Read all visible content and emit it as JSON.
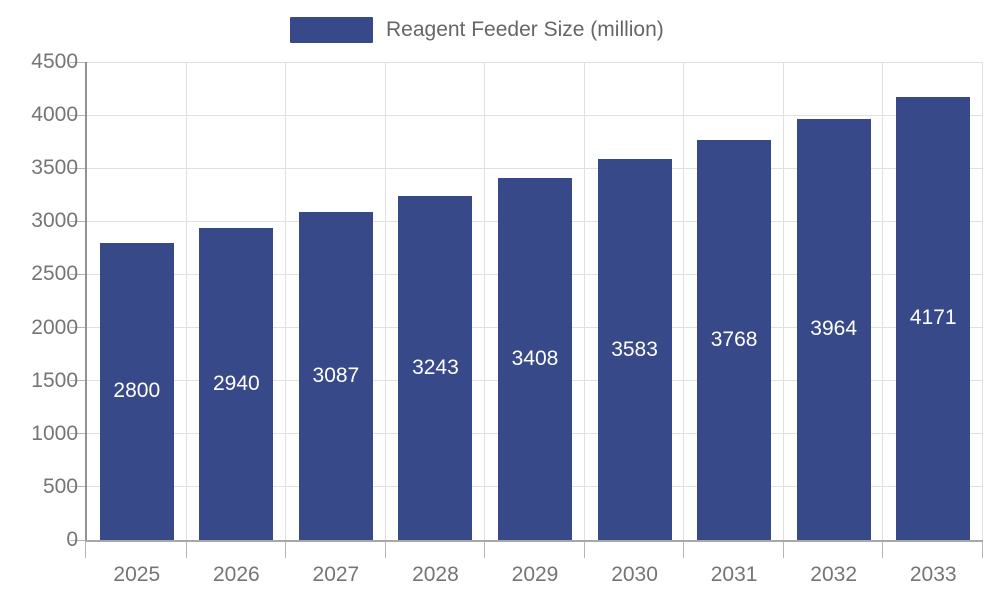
{
  "legend": {
    "label": "Reagent Feeder Size (million)"
  },
  "chart_data": {
    "type": "bar",
    "title": "",
    "xlabel": "",
    "ylabel": "",
    "categories": [
      "2025",
      "2026",
      "2027",
      "2028",
      "2029",
      "2030",
      "2031",
      "2032",
      "2033"
    ],
    "series": [
      {
        "name": "Reagent Feeder Size (million)",
        "values": [
          2800,
          2940,
          3087,
          3243,
          3408,
          3583,
          3768,
          3964,
          4171
        ]
      }
    ],
    "data_labels_shown": true,
    "ylim": [
      0,
      4500
    ],
    "ytick_interval": 500,
    "yticks": [
      0,
      500,
      1000,
      1500,
      2000,
      2500,
      3000,
      3500,
      4000,
      4500
    ],
    "grid": true,
    "legend_position": "top"
  },
  "colors": {
    "background": "#ffffff",
    "bar": "#38498A",
    "bar_label": "#ffffff",
    "grid": "#e0e0e0",
    "axis_line": "#919191",
    "axis_line_light": "#a8a8a8",
    "tick": "#b5b5b5",
    "axis_text": "#757575",
    "legend_text": "#666666"
  }
}
